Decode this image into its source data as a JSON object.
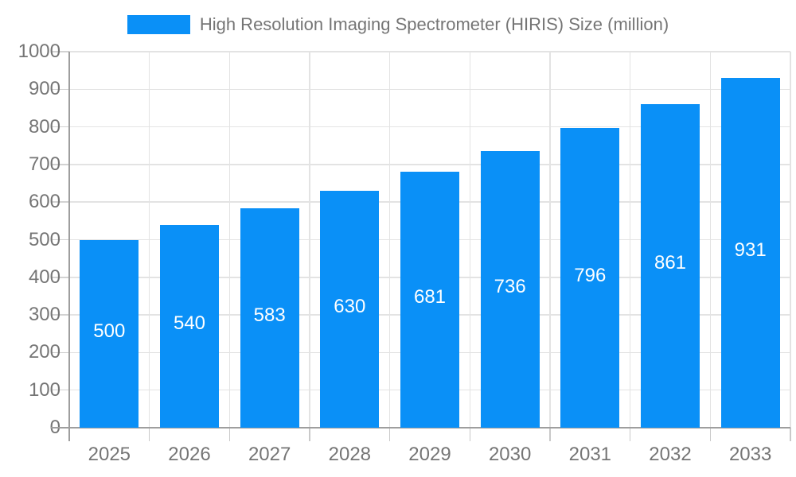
{
  "legend": {
    "position": "top",
    "items": [
      {
        "label": "High Resolution Imaging Spectrometer (HIRIS) Size (million)",
        "color": "#0a90f7"
      }
    ]
  },
  "chart_data": {
    "type": "bar",
    "title": "High Resolution Imaging Spectrometer (HIRIS) Size (million)",
    "categories": [
      "2025",
      "2026",
      "2027",
      "2028",
      "2029",
      "2030",
      "2031",
      "2032",
      "2033"
    ],
    "series": [
      {
        "name": "High Resolution Imaging Spectrometer (HIRIS) Size (million)",
        "color": "#0a90f7",
        "values": [
          500,
          540,
          583,
          630,
          681,
          736,
          796,
          861,
          931
        ]
      }
    ],
    "xlabel": "",
    "ylabel": "",
    "ylim": [
      0,
      1000
    ],
    "ytick_step": 100,
    "yticks": [
      0,
      100,
      200,
      300,
      400,
      500,
      600,
      700,
      800,
      900,
      1000
    ],
    "grid": true,
    "legend_position": "top",
    "value_labels": "inside-center",
    "value_label_color": "#ffffff",
    "axis_text_color": "#757575",
    "grid_color": "#e3e3e3",
    "axis_line_color": "#9e9e9e",
    "background": "#ffffff"
  }
}
